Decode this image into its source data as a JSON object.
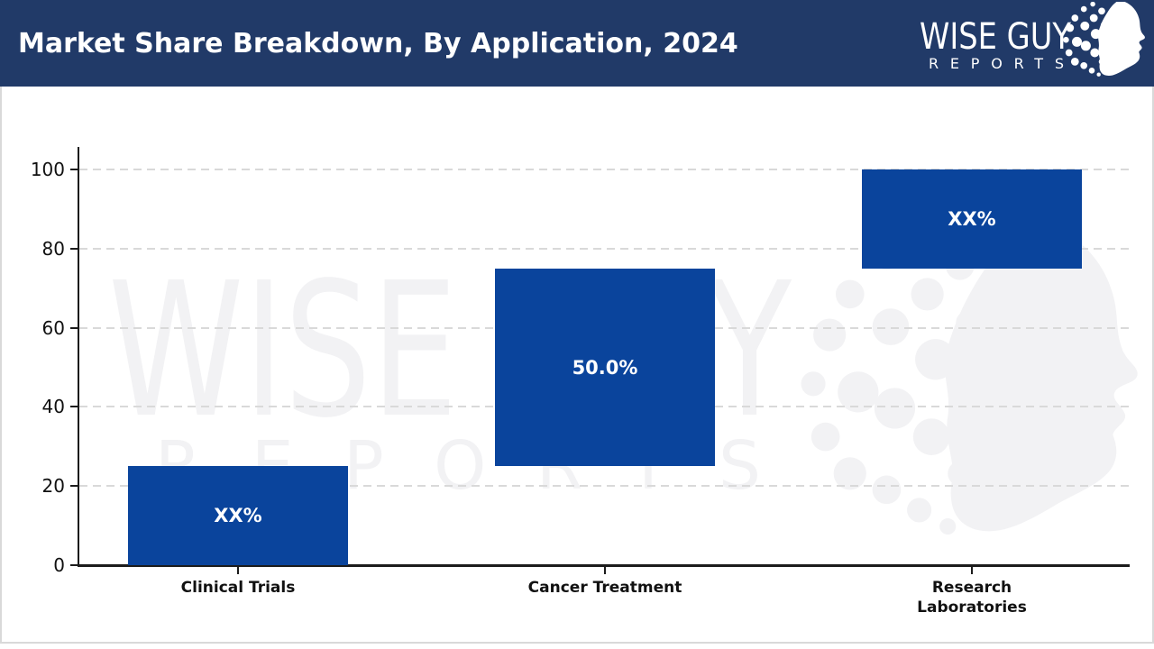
{
  "header": {
    "title": "Market Share Breakdown, By Application, 2024",
    "logo": {
      "line1": "WISE GUY",
      "line2": "REPORTS"
    }
  },
  "watermark": {
    "line1": "WISE GUY",
    "line2": "REPORTS"
  },
  "colors": {
    "header_bg": "#213a68",
    "bar": "#0a449c",
    "grid": "#d9d9d9",
    "axis": "#1c1c1c",
    "watermark": "#f2f2f4",
    "bar_label": "#ffffff"
  },
  "chart_data": {
    "type": "bar",
    "subtype": "floating-waterfall-segments",
    "title": "Market Share Breakdown, By Application, 2024",
    "xlabel": "",
    "ylabel": "",
    "categories": [
      "Clinical Trials",
      "Cancer Treatment",
      "Research Laboratories"
    ],
    "segments": [
      {
        "category": "Clinical Trials",
        "start": 0,
        "end": 25,
        "label": "XX%"
      },
      {
        "category": "Cancer Treatment",
        "start": 25,
        "end": 75,
        "label": "50.0%"
      },
      {
        "category": "Research Laboratories",
        "start": 75,
        "end": 100,
        "label": "XX%"
      }
    ],
    "y_ticks": [
      0,
      20,
      40,
      60,
      80,
      100
    ],
    "ylim": [
      0,
      105.5
    ],
    "grid": "horizontal-dashed",
    "legend": "none",
    "bar_color": "#0a449c",
    "label_color": "#ffffff"
  }
}
